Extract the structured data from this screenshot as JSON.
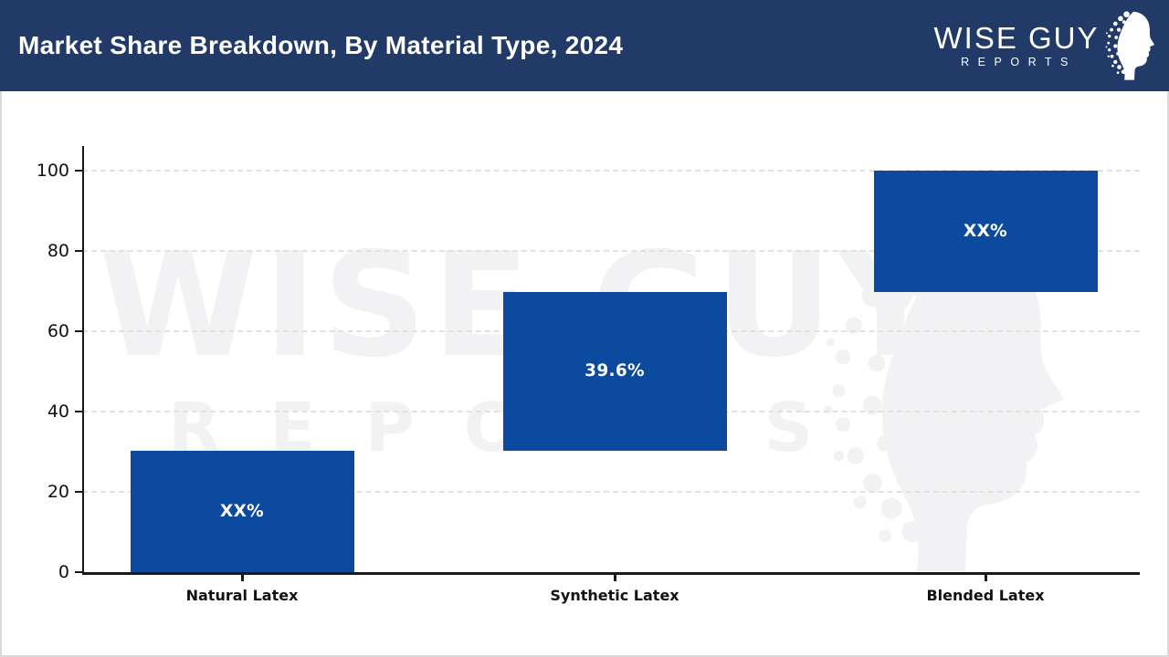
{
  "header": {
    "title": "Market Share Breakdown, By Material Type, 2024"
  },
  "logo": {
    "line1": "WISE GUY",
    "line2": "REPORTS"
  },
  "watermark": {
    "line1": "WISE GUY",
    "line2": "REPORTS"
  },
  "colors": {
    "header_bg": "#223a67",
    "bar_fill": "#0b4a9f",
    "bar_label": "#ffffff",
    "gridline": "#e1e1e1",
    "axis": "#1a1a1a",
    "watermark": "#f2f2f4"
  },
  "chart_data": {
    "type": "bar",
    "subtype": "waterfall-floating-bars",
    "title": "Market Share Breakdown, By Material Type, 2024",
    "categories": [
      "Natural Latex",
      "Synthetic Latex",
      "Blended Latex"
    ],
    "segments": [
      {
        "category": "Natural Latex",
        "start": 0,
        "end": 30.2,
        "label": "XX%"
      },
      {
        "category": "Synthetic Latex",
        "start": 30.2,
        "end": 69.8,
        "label": "39.6%"
      },
      {
        "category": "Blended Latex",
        "start": 69.8,
        "end": 100,
        "label": "XX%"
      }
    ],
    "ylim": [
      0,
      100
    ],
    "yticks": [
      0,
      20,
      40,
      60,
      80,
      100
    ],
    "xlabel": "",
    "ylabel": "",
    "grid": "dashed-horizontal",
    "legend": "none",
    "bar_color": "#0b4a9f",
    "label_color": "#ffffff"
  }
}
